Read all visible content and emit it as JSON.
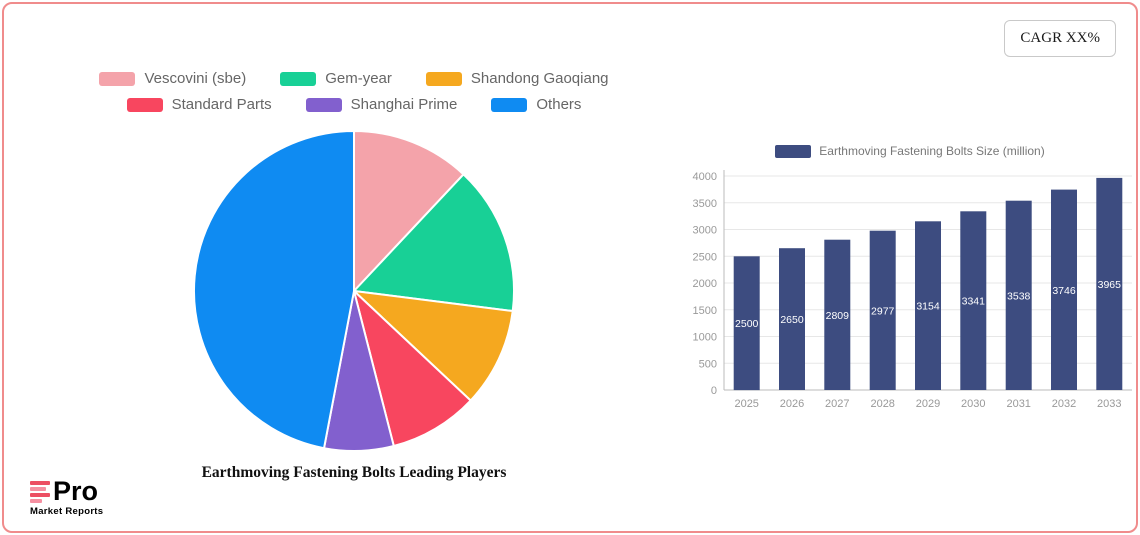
{
  "header": {
    "cagr_label": "CAGR XX%"
  },
  "logo": {
    "title": "Pro",
    "subtitle": "Market Reports"
  },
  "chart_data": [
    {
      "type": "pie",
      "title": "Earthmoving Fastening Bolts Leading Players",
      "labels": [
        "Vescovini (sbe)",
        "Gem-year",
        "Shandong Gaoqiang",
        "Standard Parts",
        "Shanghai Prime",
        "Others"
      ],
      "values": [
        12,
        15,
        10,
        9,
        7,
        47
      ],
      "colors": [
        "#f4a3aa",
        "#18d096",
        "#f5a81f",
        "#f8465f",
        "#8260ce",
        "#0f8bf2"
      ],
      "legend_position": "top"
    },
    {
      "type": "bar",
      "categories": [
        "2025",
        "2026",
        "2027",
        "2028",
        "2029",
        "2030",
        "2031",
        "2032",
        "2033"
      ],
      "series": [
        {
          "name": "Earthmoving Fastening Bolts Size (million)",
          "values": [
            2500,
            2650,
            2809,
            2977,
            3154,
            3341,
            3538,
            3746,
            3965
          ]
        }
      ],
      "ylim": [
        0,
        4000
      ],
      "yticks": [
        0,
        500,
        1000,
        1500,
        2000,
        2500,
        3000,
        3500,
        4000
      ],
      "color": "#3d4c80",
      "grid": true,
      "legend_position": "top",
      "value_labels": "inside-white"
    }
  ]
}
